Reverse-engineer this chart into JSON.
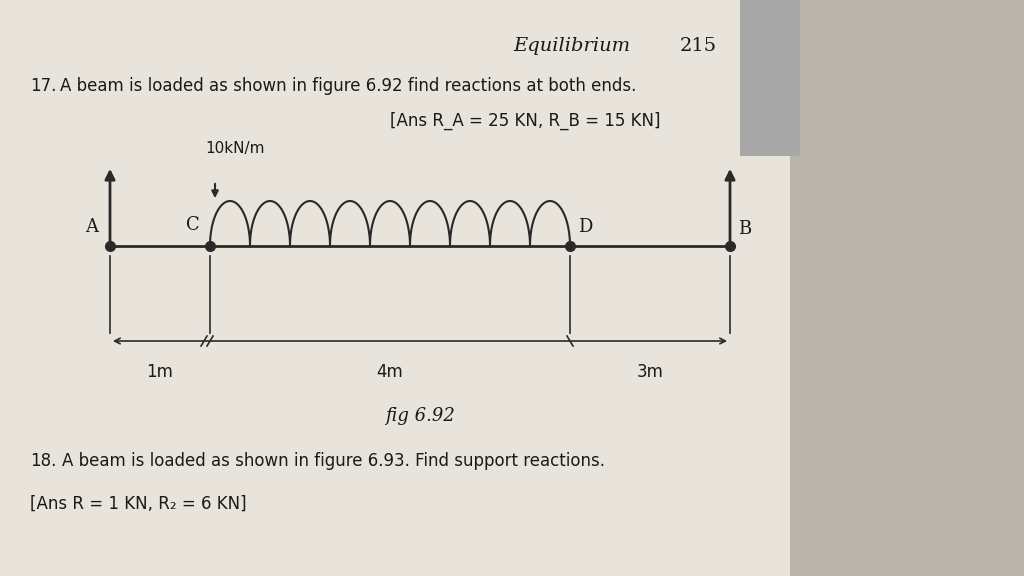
{
  "bg_color": "#ccc8be",
  "page_bg": "#e8e4dc",
  "title": "Equilibrium",
  "page_number": "215",
  "problem_number": "17.",
  "problem_text": "A beam is loaded as shown in figure 6.92 find reactions at both ends.",
  "answer_text": "[Ans R_A = 25 KN, R_B = 15 KN]",
  "load_label": "10kN/m",
  "fig_caption": "fig 6.92",
  "next_problem_num": "18.",
  "next_problem_text": "A beam is loaded as shown in figure 6.93. Find support reactions.",
  "next_answer": "[Ans R = 1 KN, R",
  "dim_1m_label": "1m",
  "dim_4m_label": "4m",
  "dim_3m_label": "3m",
  "text_color": "#1a1a1a",
  "beam_color": "#2a2a2a",
  "num_coils": 9,
  "gray_tab_color": "#a8a8a8"
}
